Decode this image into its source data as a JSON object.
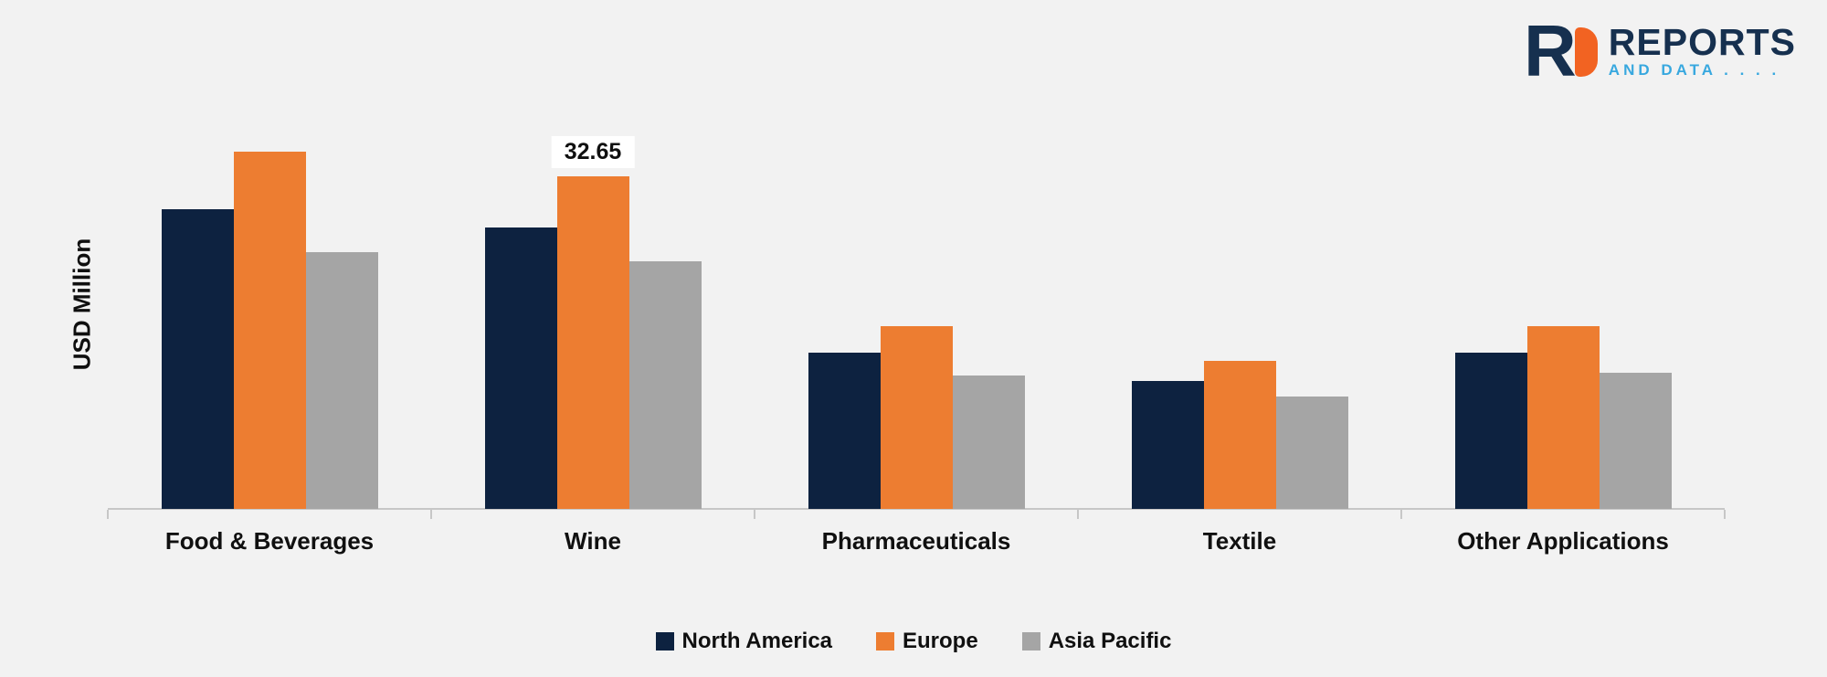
{
  "logo": {
    "mark_letter": "R",
    "title": "REPORTS",
    "tagline": "AND DATA . . . ."
  },
  "chart_data": {
    "type": "bar",
    "title": "",
    "xlabel": "",
    "ylabel": "USD Million",
    "categories": [
      "Food & Beverages",
      "Wine",
      "Pharmaceuticals",
      "Textile",
      "Other Applications"
    ],
    "series": [
      {
        "name": "North America",
        "color": "#0d2240",
        "values": [
          29.4,
          27.6,
          15.3,
          12.6,
          15.3
        ]
      },
      {
        "name": "Europe",
        "color": "#ed7d31",
        "values": [
          35.1,
          32.65,
          17.9,
          14.5,
          17.9
        ]
      },
      {
        "name": "Asia Pacific",
        "color": "#a5a5a5",
        "values": [
          25.2,
          24.3,
          13.1,
          11.0,
          13.4
        ]
      }
    ],
    "data_labels": [
      {
        "series": "Europe",
        "category": "Wine",
        "text": "32.65"
      }
    ],
    "ylim": [
      0,
      40
    ],
    "grid": false,
    "y_ticks_visible": false,
    "legend_position": "bottom"
  },
  "colors": {
    "background": "#f2f2f2",
    "axis_line": "#c7c7c7",
    "text": "#101010",
    "data_label_background": "#ffffff",
    "logo_navy": "#16304f",
    "logo_orange": "#f26322",
    "logo_blue": "#38a8df"
  }
}
